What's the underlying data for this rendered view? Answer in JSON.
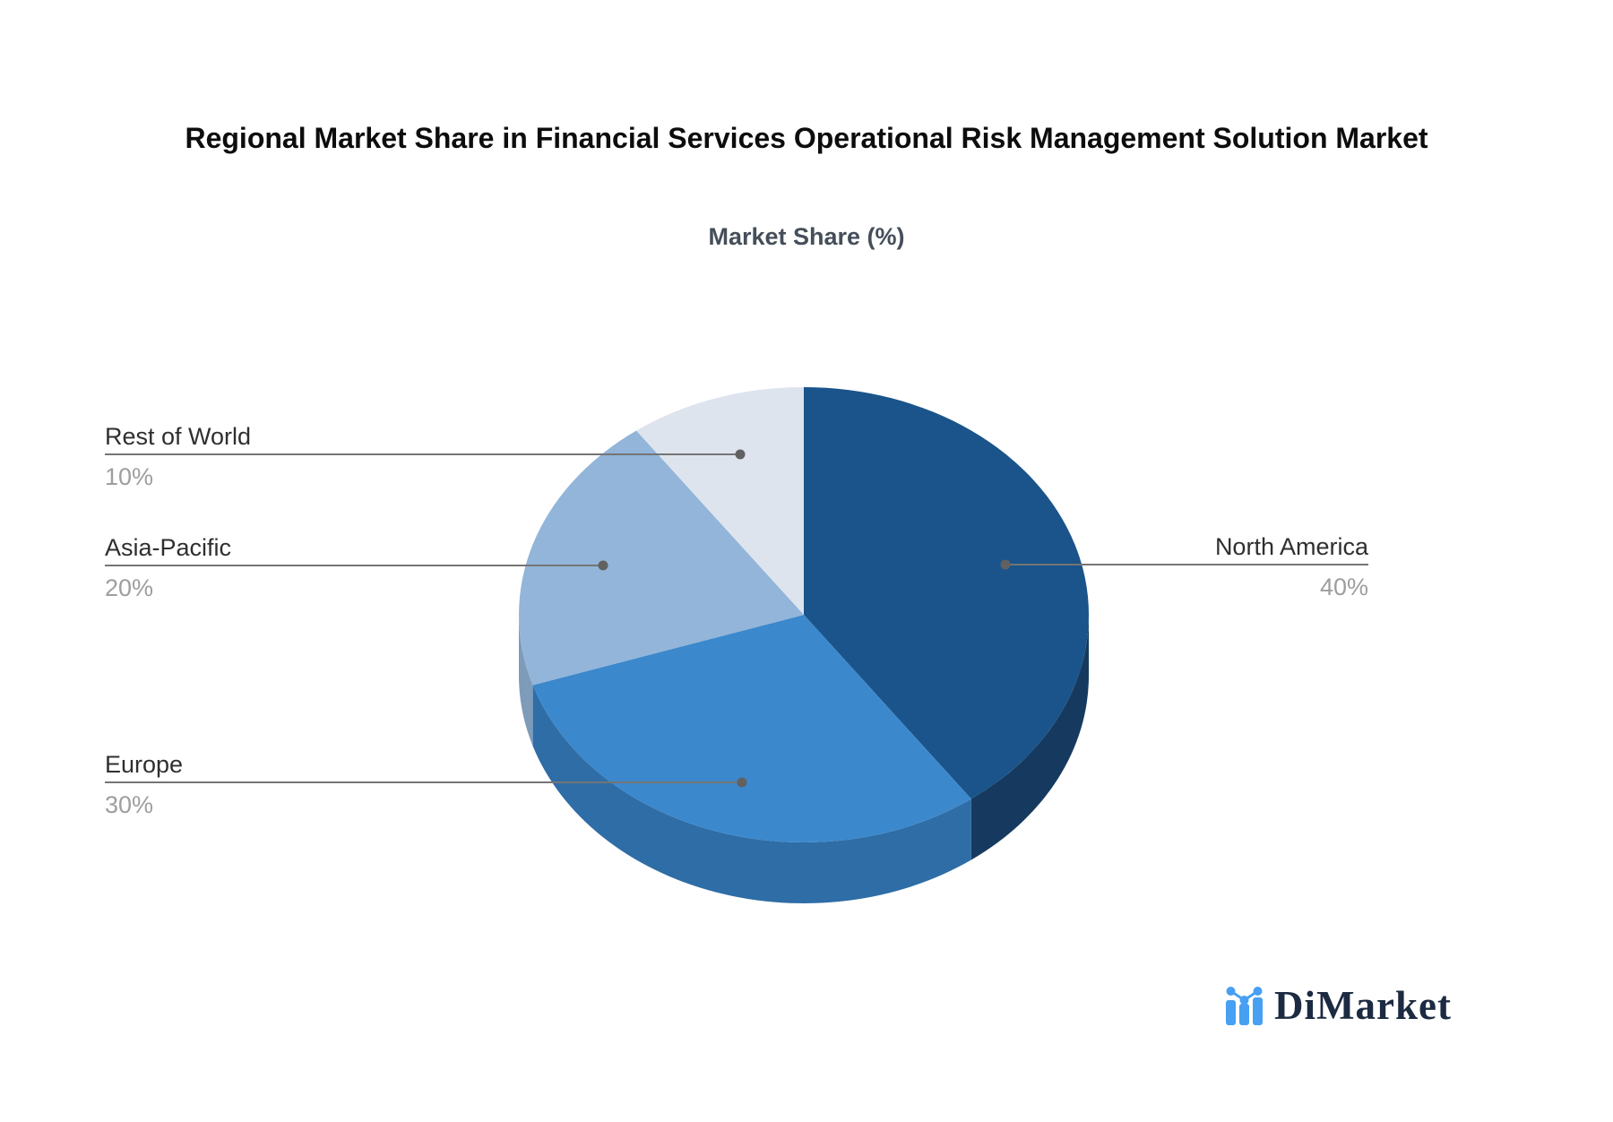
{
  "title": "Regional Market Share in Financial Services Operational Risk Management Solution Market",
  "subtitle": "Market Share (%)",
  "logo": {
    "text": "DiMarket",
    "icon": "bar-line-chart-icon",
    "icon_color": "#47a0f2",
    "text_color": "#1c2a42"
  },
  "chart_data": {
    "type": "pie",
    "title": "Regional Market Share in Financial Services Operational Risk Management Solution Market",
    "subtitle": "Market Share (%)",
    "unit": "%",
    "style": "3d-pie",
    "start_angle_deg": 0,
    "direction": "clockwise",
    "legend_position": "callout-labels",
    "series": [
      {
        "name": "North America",
        "value": 40,
        "label": "40%",
        "color": "#1a548a",
        "side_color": "#163a5f"
      },
      {
        "name": "Europe",
        "value": 30,
        "label": "30%",
        "color": "#3c88cc",
        "side_color": "#2e6da6"
      },
      {
        "name": "Asia-Pacific",
        "value": 20,
        "label": "20%",
        "color": "#92b5d9",
        "side_color": "#7e9bb9"
      },
      {
        "name": "Rest of World",
        "value": 10,
        "label": "10%",
        "color": "#dde4ee",
        "side_color": "#c7d2e2"
      }
    ],
    "colors": {
      "leader_line": "#757575",
      "leader_dot": "#616161",
      "label_text": "#2f2f2f",
      "pct_text": "#9e9e9e",
      "background": "#ffffff"
    }
  }
}
